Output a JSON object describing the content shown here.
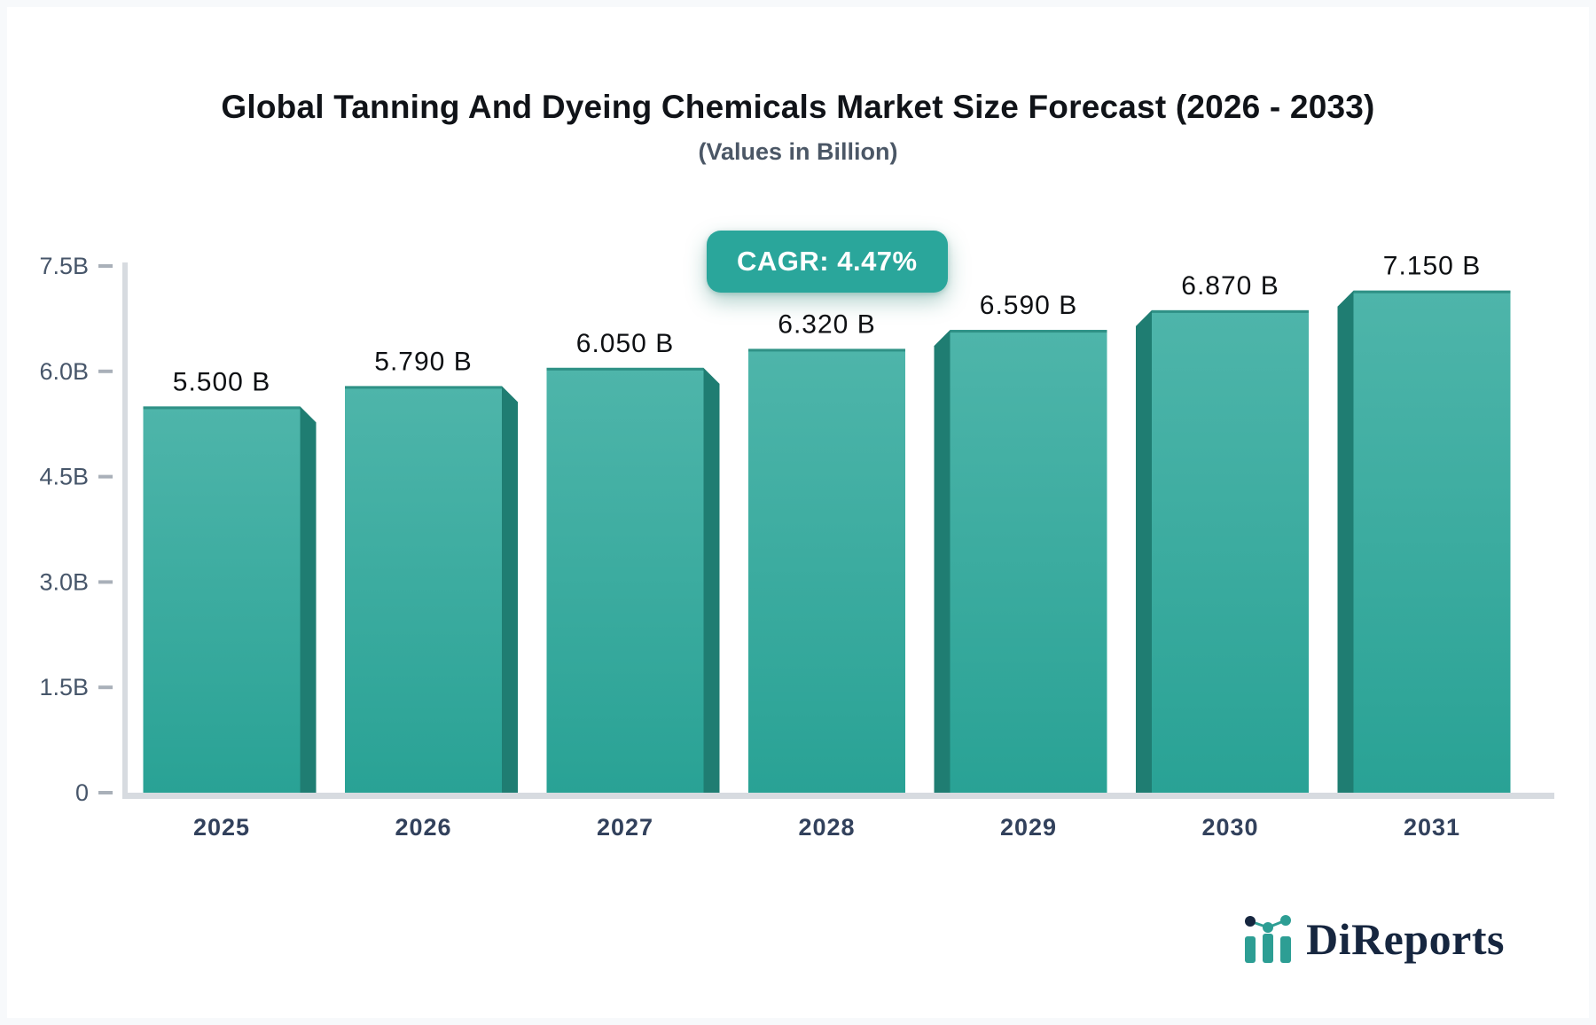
{
  "header": {
    "title": "Global Tanning And Dyeing Chemicals Market Size Forecast (2026 - 2033)",
    "subtitle": "(Values in Billion)"
  },
  "cagr_badge": {
    "label": "CAGR: 4.47%"
  },
  "logo": {
    "name": "DiReports"
  },
  "chart_data": {
    "type": "bar",
    "title": "Global Tanning And Dyeing Chemicals Market Size Forecast (2026 - 2033)",
    "subtitle": "(Values in Billion)",
    "categories": [
      "2025",
      "2026",
      "2027",
      "2028",
      "2029",
      "2030",
      "2031"
    ],
    "values": [
      5.5,
      5.79,
      6.05,
      6.32,
      6.59,
      6.87,
      7.15
    ],
    "value_labels": [
      "5.500 B",
      "5.790 B",
      "6.050 B",
      "6.320 B",
      "6.590 B",
      "6.870 B",
      "7.150 B"
    ],
    "cagr_percent": 4.47,
    "xlabel": "",
    "ylabel": "",
    "ylim": [
      0,
      7.5
    ],
    "ytick_values": [
      0,
      1.5,
      3.0,
      4.5,
      6.0,
      7.5
    ],
    "ytick_labels": [
      "0",
      "1.5B",
      "3.0B",
      "4.5B",
      "6.0B",
      "7.5B"
    ],
    "grid": false,
    "legend": null,
    "colors": {
      "bar_gradient_top": "#4eb5aa",
      "bar_gradient_bottom": "#29a295",
      "bar_top_edge": "#2f9186",
      "bar_side_face": "#1f7d72",
      "badge_background": "#2aa69b",
      "axis_line": "#d7dbe0",
      "tick_dash": "#a9b0b9",
      "y_label_color": "#47566a",
      "x_label_color": "#32415c",
      "value_label_color": "#0e1013",
      "logo_navy": "#16263f",
      "logo_teal": "#2d9e94"
    }
  }
}
